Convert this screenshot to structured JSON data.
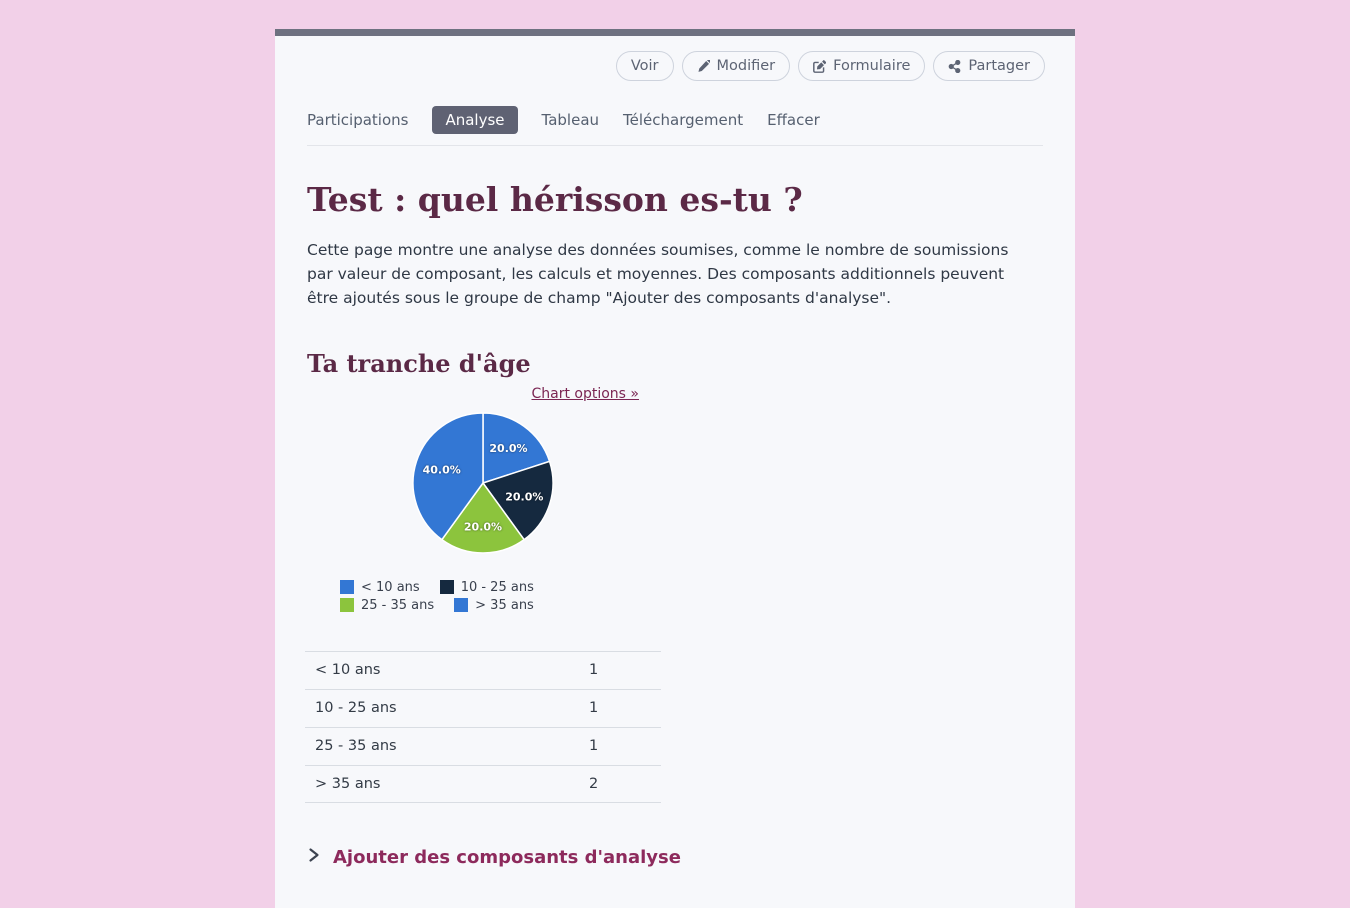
{
  "page": {
    "background_color": "#f2d0e8",
    "content_background_color": "#f7f8fb",
    "top_bar_color": "#6e7180",
    "accent_color": "#5b2946"
  },
  "actions": [
    {
      "label": "Voir",
      "icon": null
    },
    {
      "label": "Modifier",
      "icon": "pencil-icon"
    },
    {
      "label": "Formulaire",
      "icon": "edit-icon"
    },
    {
      "label": "Partager",
      "icon": "share-icon"
    }
  ],
  "tabs": [
    {
      "label": "Participations",
      "active": false
    },
    {
      "label": "Analyse",
      "active": true
    },
    {
      "label": "Tableau",
      "active": false
    },
    {
      "label": "Téléchargement",
      "active": false
    },
    {
      "label": "Effacer",
      "active": false
    }
  ],
  "header": {
    "title": "Test : quel hérisson es-tu ?",
    "description": "Cette page montre une analyse des données soumises, comme le nombre de soumissions par valeur de composant, les calculs et moyennes. Des composants additionnels peuvent être ajoutés sous le groupe de champ \"Ajouter des composants d'analyse\"."
  },
  "analysis": {
    "section_title": "Ta tranche d'âge",
    "chart_options_label": "Chart options »",
    "add_components_label": "Ajouter des composants d'analyse"
  },
  "chart_data": {
    "type": "pie",
    "title": "Ta tranche d'âge",
    "categories": [
      "< 10 ans",
      "10 - 25 ans",
      "25 - 35 ans",
      "> 35 ans"
    ],
    "values": [
      1,
      1,
      1,
      2
    ],
    "percentages": [
      20.0,
      20.0,
      20.0,
      40.0
    ],
    "slice_labels": [
      "20.0%",
      "20.0%",
      "20.0%",
      "40.0%"
    ],
    "colors": [
      "#3377d4",
      "#15293f",
      "#8cc43d",
      "#3377d4"
    ],
    "start_angle_deg": 0,
    "direction": "clockwise",
    "legend_position": "bottom"
  },
  "table": {
    "rows": [
      {
        "label": "< 10 ans",
        "value": "1"
      },
      {
        "label": "10 - 25 ans",
        "value": "1"
      },
      {
        "label": "25 - 35 ans",
        "value": "1"
      },
      {
        "label": "> 35 ans",
        "value": "2"
      }
    ]
  }
}
